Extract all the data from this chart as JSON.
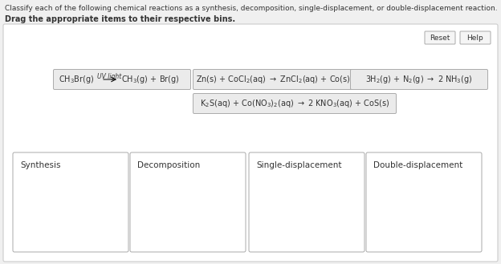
{
  "title_line1": "Classify each of the following chemical reactions as a synthesis, decomposition, single-displacement, or double-displacement reaction.",
  "title_line2": "Drag the appropriate items to their respective bins.",
  "bg_color": "#f0f0f0",
  "panel_bg": "#ffffff",
  "panel_border": "#cccccc",
  "button_reset": "Reset",
  "button_help": "Help",
  "bins": [
    "Synthesis",
    "Decomposition",
    "Single-displacement",
    "Double-displacement"
  ],
  "card_bg": "#ebebeb",
  "card_border": "#aaaaaa",
  "bin_bg": "#ffffff",
  "bin_border": "#aaaaaa",
  "font_color": "#333333",
  "title_font": 6.5,
  "bold_font": 7.0,
  "card_font": 7.0,
  "btn_font": 6.5,
  "bin_font": 7.5
}
